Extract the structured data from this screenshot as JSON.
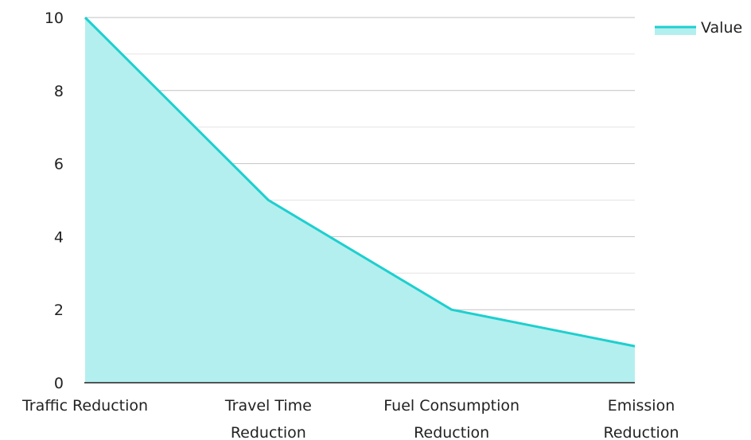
{
  "chart_data": {
    "type": "area",
    "categories": [
      [
        "Traffic Reduction"
      ],
      [
        "Travel Time",
        "Reduction"
      ],
      [
        "Fuel Consumption",
        "Reduction"
      ],
      [
        "Emission",
        "Reduction"
      ]
    ],
    "series": [
      {
        "name": "Value",
        "values": [
          10,
          5,
          2,
          1
        ]
      }
    ],
    "ylim": [
      0,
      10
    ],
    "y_ticks": [
      0,
      2,
      4,
      6,
      8,
      10
    ],
    "grid": true,
    "legend_position": "top-right",
    "colors": {
      "line": "#1ecfcf",
      "fill": "#b3efee",
      "grid_major": "#c2c2c2",
      "grid_minor": "#e4e4e4",
      "axis": "#222222",
      "text": "#222222"
    }
  }
}
